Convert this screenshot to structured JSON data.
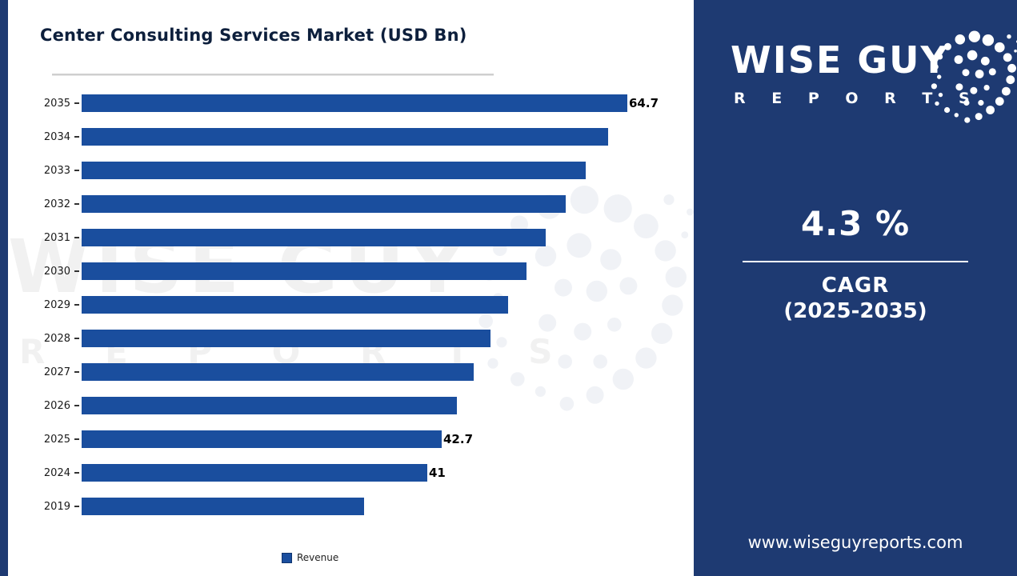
{
  "colors": {
    "bar": "#1a4e9e",
    "panel": "#1e3a72",
    "title_text": "#0d1f3c",
    "divider": "#cfcfcf"
  },
  "chart": {
    "title": "Center Consulting Services Market (USD Bn)",
    "legend": {
      "label": "Revenue"
    }
  },
  "chart_data": {
    "type": "bar",
    "orientation": "horizontal",
    "title": "Center Consulting Services Market (USD Bn)",
    "xlabel": "",
    "ylabel": "",
    "unit": "USD Bn",
    "series_name": "Revenue",
    "legend_position": "bottom",
    "grid": false,
    "categories": [
      "2035",
      "2034",
      "2033",
      "2032",
      "2031",
      "2030",
      "2029",
      "2028",
      "2027",
      "2026",
      "2025",
      "2024",
      "2019"
    ],
    "values": [
      64.7,
      62.4,
      59.8,
      57.4,
      55.0,
      52.7,
      50.6,
      48.5,
      46.5,
      44.5,
      42.7,
      41,
      33.5
    ],
    "bar_labels": [
      "64.7",
      "",
      "",
      "",
      "",
      "",
      "",
      "",
      "",
      "",
      "42.7",
      "41",
      ""
    ],
    "xlim": [
      0,
      70
    ]
  },
  "watermark": {
    "line1": "WISE GUY",
    "line2": "R E P O R T S"
  },
  "side_panel": {
    "logo": {
      "line1": "WISE GUY",
      "line2": "R E P O R T S"
    },
    "cagr_value": "4.3 %",
    "cagr_label": "CAGR",
    "cagr_period": "(2025-2035)",
    "website": "www.wiseguyreports.com"
  }
}
